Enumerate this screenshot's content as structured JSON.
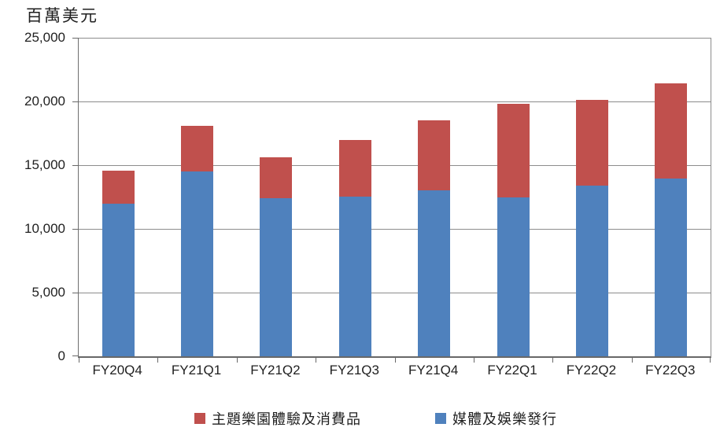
{
  "chart": {
    "title": "百萬美元"
  },
  "chart_data": {
    "type": "bar",
    "stacked": true,
    "title": "百萬美元",
    "unit": "百萬美元",
    "categories": [
      "FY20Q4",
      "FY21Q1",
      "FY21Q2",
      "FY21Q3",
      "FY21Q4",
      "FY22Q1",
      "FY22Q2",
      "FY22Q3"
    ],
    "series": [
      {
        "name": "媒體及娛樂發行",
        "color": "#4f81bd",
        "values": [
          11950,
          14500,
          12400,
          12550,
          13000,
          12500,
          13400,
          13950
        ]
      },
      {
        "name": "主題樂園體驗及消費品",
        "color": "#c0504d",
        "values": [
          2650,
          3600,
          3200,
          4450,
          5500,
          7300,
          6750,
          7500
        ]
      }
    ],
    "totals": [
      14600,
      18100,
      15600,
      17000,
      18500,
      19800,
      20150,
      21450
    ],
    "ylim": [
      0,
      25000
    ],
    "ytick_interval": 5000,
    "yticks": [
      0,
      5000,
      10000,
      15000,
      20000,
      25000
    ],
    "ytick_labels": [
      "0",
      "5,000",
      "10,000",
      "15,000",
      "20,000",
      "25,000"
    ],
    "grid": true,
    "legend_position": "bottom",
    "legend": [
      {
        "label": "主題樂園體驗及消費品",
        "color": "#c0504d"
      },
      {
        "label": "媒體及娛樂發行",
        "color": "#4f81bd"
      }
    ]
  }
}
